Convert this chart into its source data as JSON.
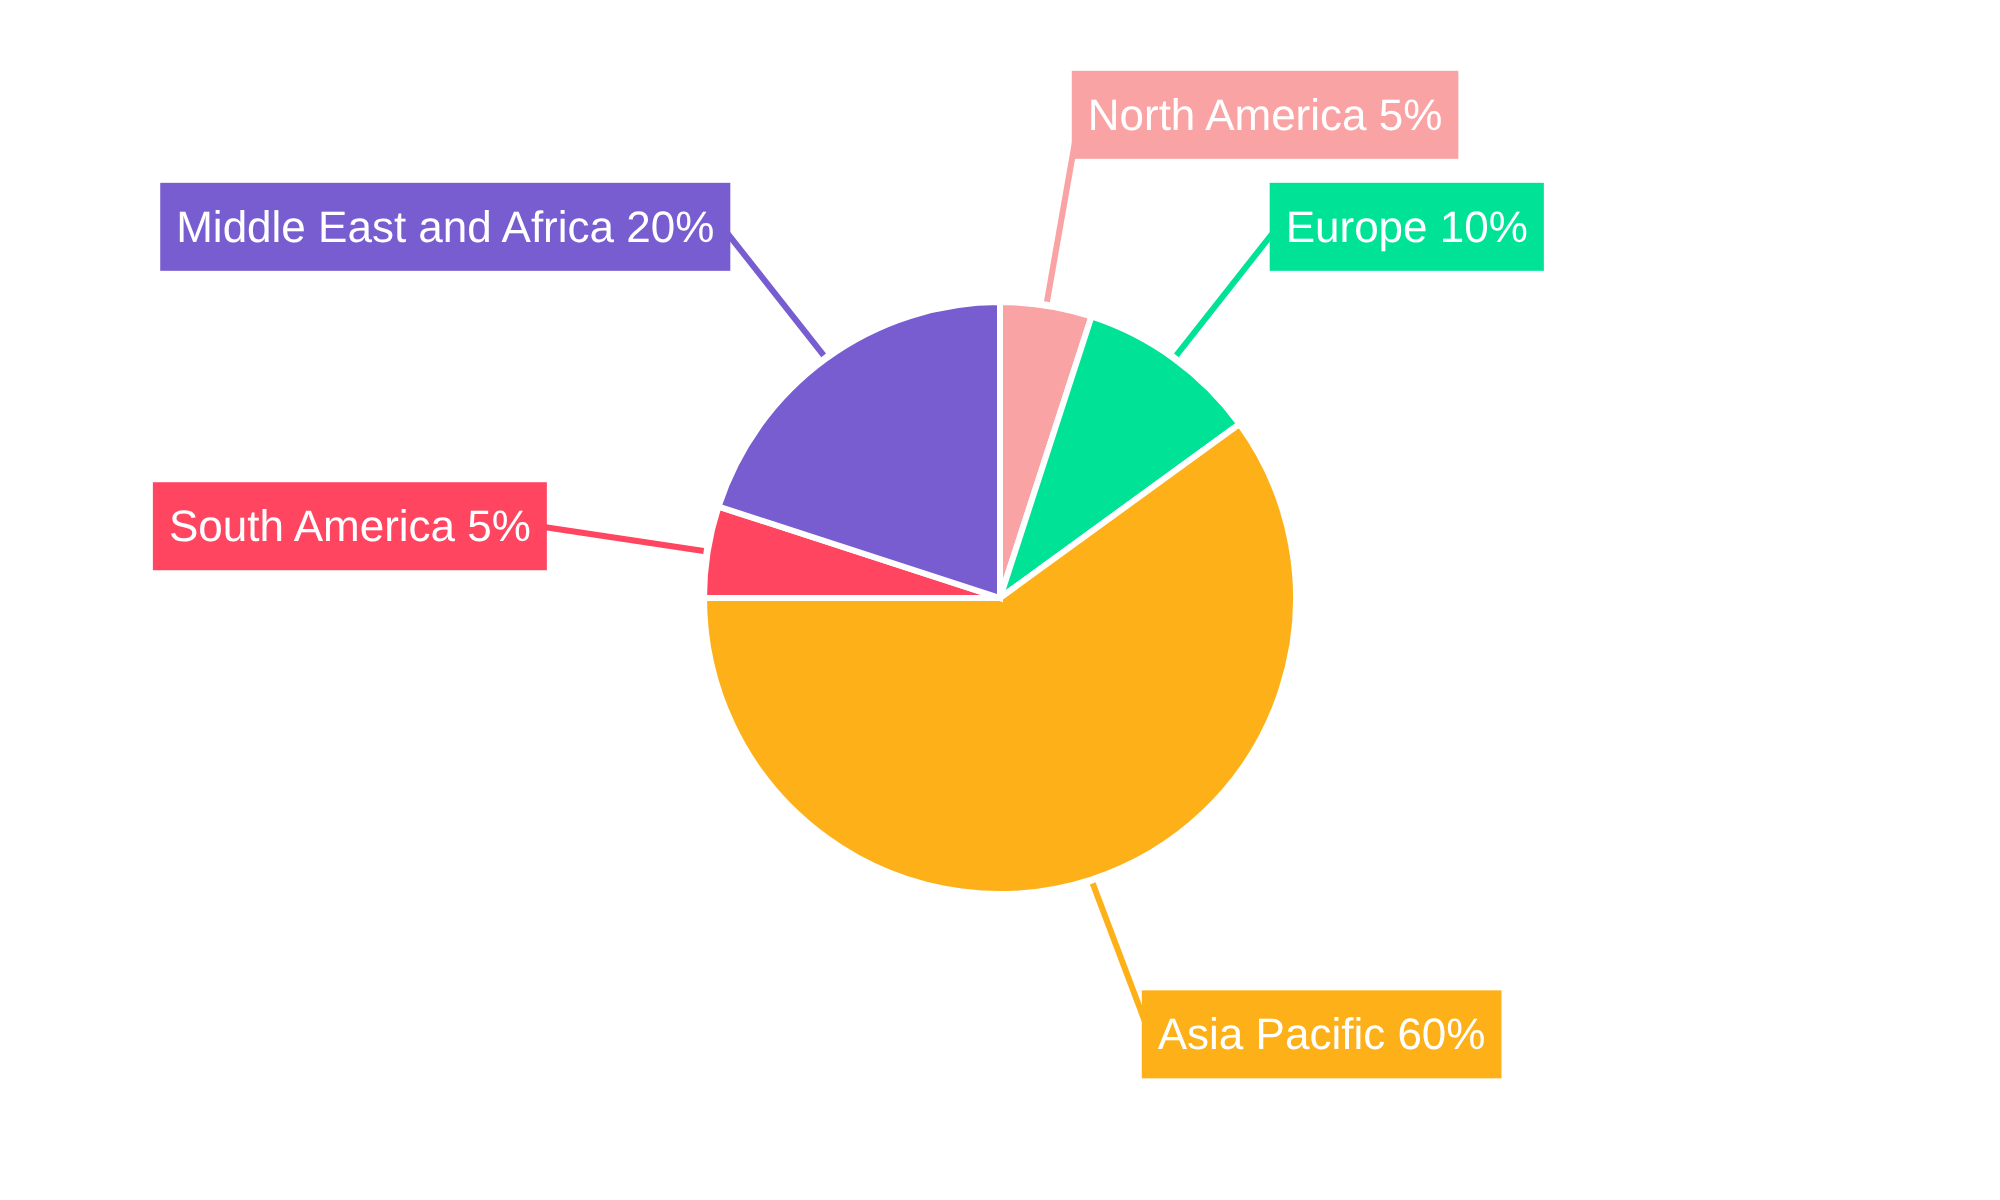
{
  "chart_data": {
    "type": "pie",
    "categories": [
      "North America",
      "Europe",
      "Asia Pacific",
      "South America",
      "Middle East and Africa"
    ],
    "values": [
      5,
      10,
      60,
      5,
      20
    ],
    "value_labels": [
      "5%",
      "10%",
      "60%",
      "5%",
      "20%"
    ],
    "colors": [
      "#f9a3a4",
      "#00e396",
      "#feb019",
      "#ff4560",
      "#775dd0"
    ]
  }
}
